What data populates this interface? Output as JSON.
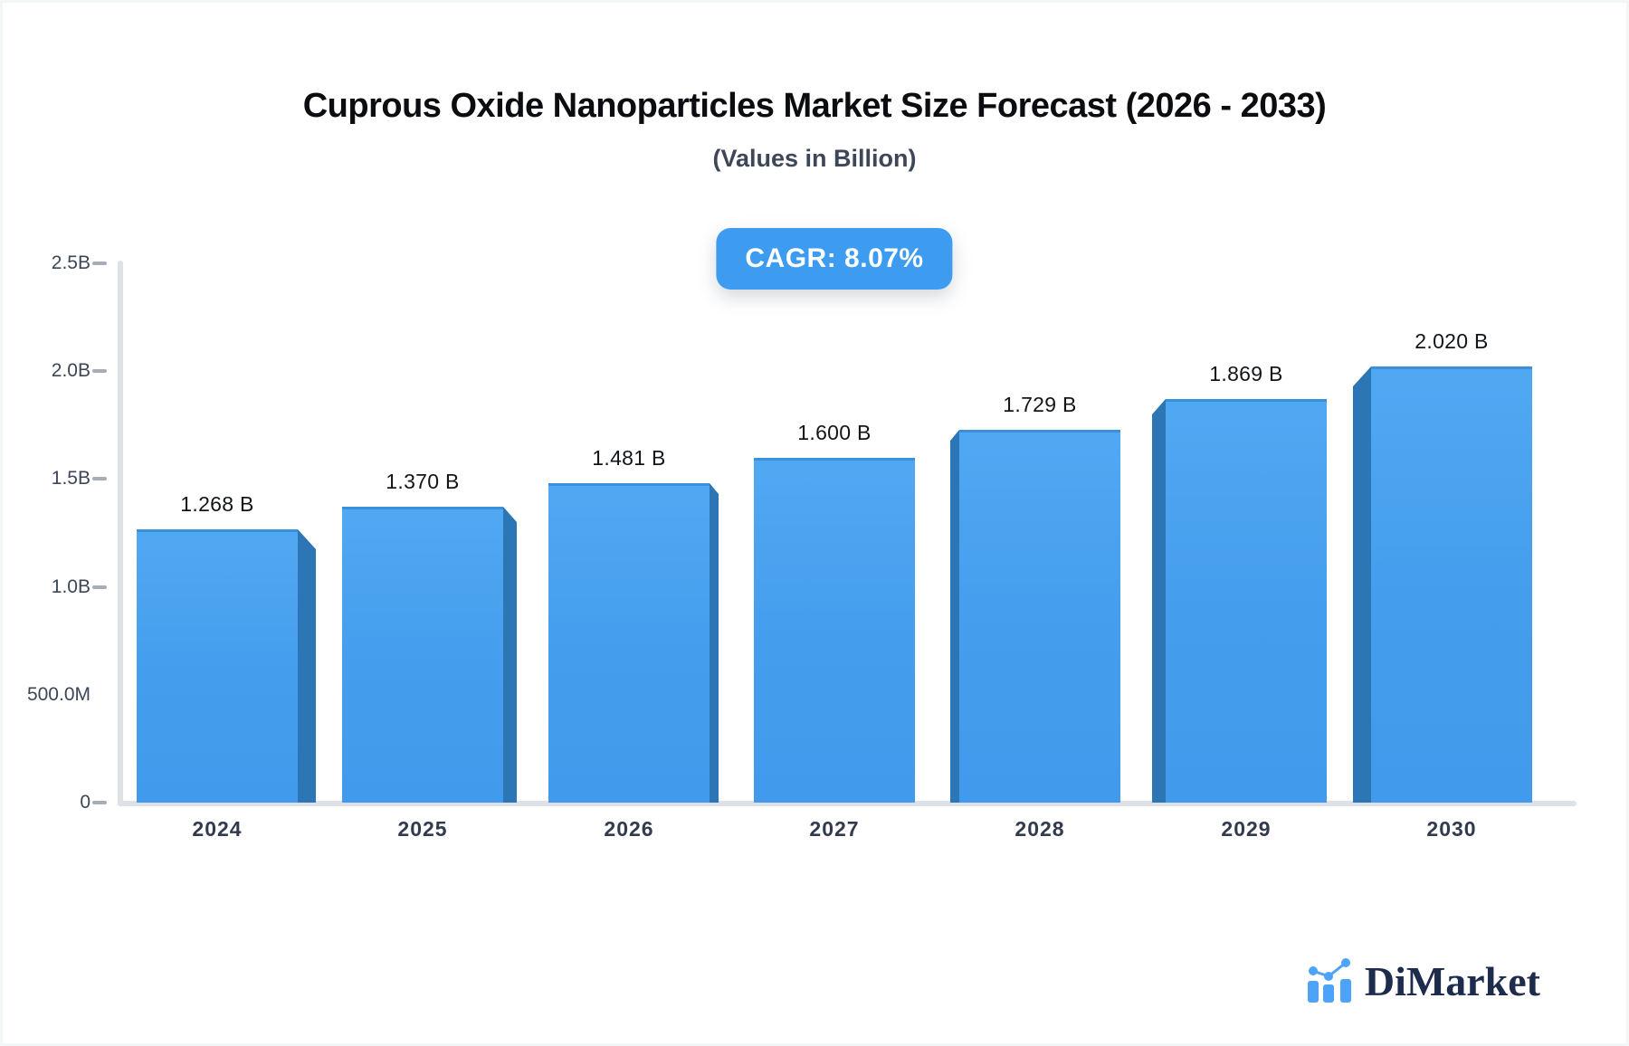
{
  "header": {
    "title": "Cuprous Oxide Nanoparticles Market Size Forecast (2026 - 2033)",
    "subtitle": "(Values in Billion)"
  },
  "badge": {
    "label": "CAGR: 8.07%",
    "color": "#3d9cf0"
  },
  "footer": {
    "logo_text": "DiMarket",
    "logo_icon": "bar-chart-sparkline-icon",
    "logo_color": "#1d2b4d",
    "icon_color": "#4da3f7"
  },
  "colors": {
    "bar_face": "#46a0ef",
    "bar_side": "#2c76b5",
    "bar_top_edge": "#3b90dc",
    "axis": "#dee2e8",
    "tick_dash": "#a6adb8",
    "ytick_text": "#3c4657",
    "xtick_text": "#323b4e",
    "value_label_text": "#131619"
  },
  "chart_data": {
    "type": "bar",
    "style": "3d-perspective-bars",
    "title": "Cuprous Oxide Nanoparticles Market Size Forecast (2026 - 2033)",
    "subtitle": "(Values in Billion)",
    "annotation": "CAGR: 8.07%",
    "categories": [
      "2024",
      "2025",
      "2026",
      "2027",
      "2028",
      "2029",
      "2030"
    ],
    "values": [
      1.268,
      1.37,
      1.481,
      1.6,
      1.729,
      1.869,
      2.02
    ],
    "value_labels": [
      "1.268 B",
      "1.370 B",
      "1.481 B",
      "1.600 B",
      "1.729 B",
      "1.869 B",
      "2.020 B"
    ],
    "unit": "Billion",
    "xlabel": "",
    "ylabel": "",
    "ylim": [
      0,
      2.5
    ],
    "ytick_labels": [
      "2.5B",
      "2.0B",
      "1.5B",
      "1.0B",
      "500.0M",
      "0"
    ],
    "ytick_values": [
      2.5,
      2.0,
      1.5,
      1.0,
      0.5,
      0
    ],
    "ytick_dashes": [
      true,
      true,
      true,
      true,
      false,
      true
    ],
    "grid": false,
    "legend": false
  }
}
